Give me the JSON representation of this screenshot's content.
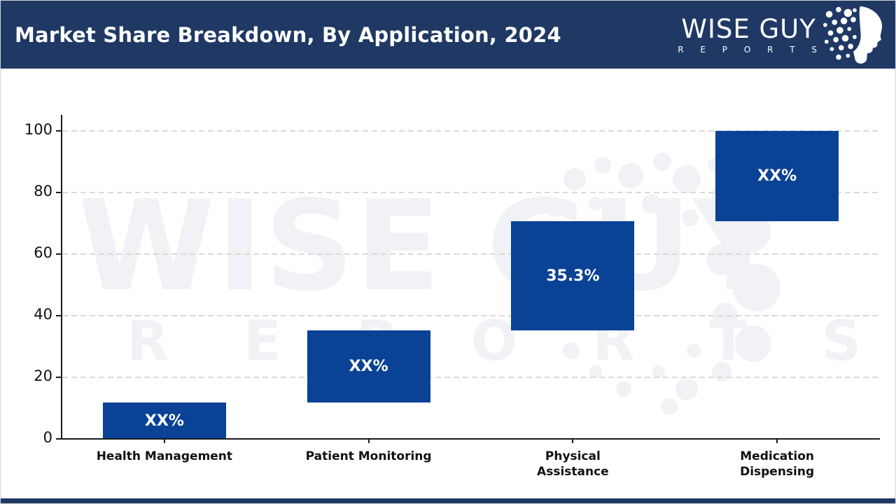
{
  "header": {
    "title": "Market Share Breakdown, By Application, 2024",
    "logo_primary": "WISE GUY",
    "logo_secondary": "R E P O R T S",
    "logo_icon": "dotted-face-profile",
    "background_color": "#1f3864"
  },
  "watermark": {
    "primary": "WISE GUY",
    "secondary": "R E P O R T S",
    "icon": "dotted-face-profile"
  },
  "chart_data": {
    "type": "bar",
    "variant": "waterfall",
    "title": "Market Share Breakdown, By Application, 2024",
    "categories": [
      "Health Management",
      "Patient Monitoring",
      "Physical Assistance",
      "Medication Dispensing"
    ],
    "tick_labels": [
      "Health Management",
      "Patient Monitoring",
      "Physical\nAssistance",
      "Medication\nDispensing"
    ],
    "segments": [
      {
        "category": "Health Management",
        "start": 0,
        "end": 11.8,
        "value": 11.8,
        "label": "XX%"
      },
      {
        "category": "Patient Monitoring",
        "start": 11.8,
        "end": 35.3,
        "value": 23.5,
        "label": "XX%"
      },
      {
        "category": "Physical Assistance",
        "start": 35.3,
        "end": 70.6,
        "value": 35.3,
        "label": "35.3%"
      },
      {
        "category": "Medication Dispensing",
        "start": 70.6,
        "end": 100,
        "value": 29.4,
        "label": "XX%"
      }
    ],
    "xlabel": "",
    "ylabel": "",
    "ylim": [
      0,
      100
    ],
    "yticks": [
      0,
      20,
      40,
      60,
      80,
      100
    ],
    "grid": "horizontal-dashed",
    "legend": "none",
    "bar_color": "#0a4296",
    "bar_label_color": "#ffffff",
    "axis_color": "#1a1a1a"
  },
  "footer": {
    "background_color": "#1f3864"
  }
}
